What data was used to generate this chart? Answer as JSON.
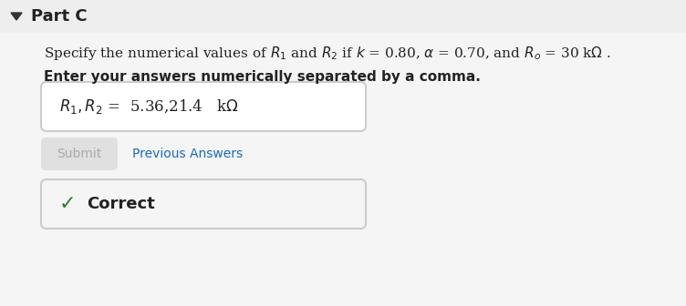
{
  "background_color": "#f5f5f5",
  "white_bg": "#ffffff",
  "header_bg": "#eeeeee",
  "part_label": "Part C",
  "triangle_color": "#333333",
  "question": "Specify the numerical values of $R_1$ and $R_2$ if $k$ = 0.80, $\\alpha$ = 0.70, and $R_o$ = 30 k$\\Omega$ .",
  "bold_instruction": "Enter your answers numerically separated by a comma.",
  "input_text": "$R_1, R_2$ =  5.36,21.4   k$\\Omega$",
  "submit_text": "Submit",
  "submit_bg": "#e0e0e0",
  "submit_text_color": "#aaaaaa",
  "prev_answers_text": "Previous Answers",
  "prev_answers_color": "#1a6bbf",
  "correct_text": "Correct",
  "check_color": "#2e7d32",
  "box_border_color": "#cccccc",
  "correct_box_bg": "#f5f5f5"
}
